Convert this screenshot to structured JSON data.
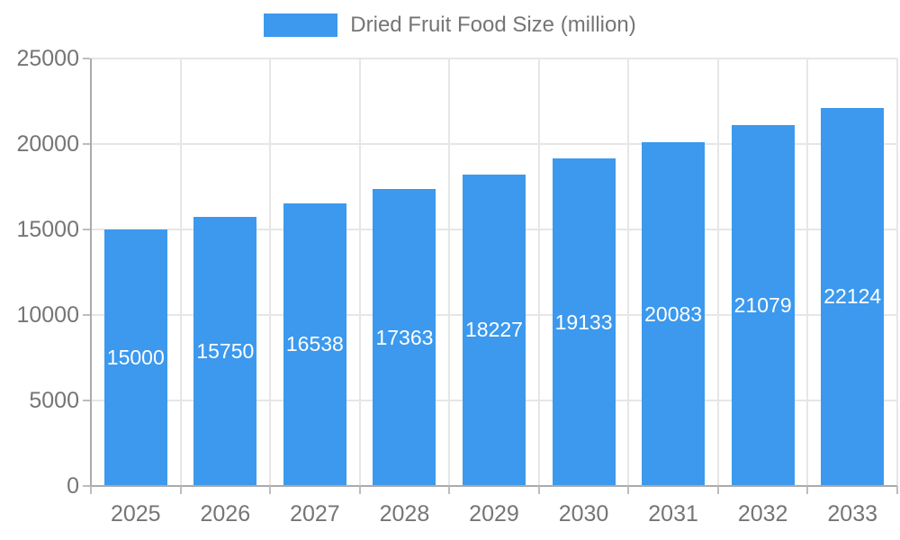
{
  "legend": {
    "label": "Dried Fruit Food Size (million)",
    "swatch_color": "#3C99ED"
  },
  "chart_data": {
    "type": "bar",
    "title": "Dried Fruit Food Size (million)",
    "series_name": "Dried Fruit Food Size (million)",
    "categories": [
      "2025",
      "2026",
      "2027",
      "2028",
      "2029",
      "2030",
      "2031",
      "2032",
      "2033"
    ],
    "values": [
      15000,
      15750,
      16538,
      17363,
      18227,
      19133,
      20083,
      21079,
      22124
    ],
    "bar_labels": [
      "15000",
      "15750",
      "16538",
      "17363",
      "18227",
      "19133",
      "20083",
      "21079",
      "22124"
    ],
    "xlabel": "",
    "ylabel": "",
    "ylim": [
      0,
      25000
    ],
    "yticks": [
      0,
      5000,
      10000,
      15000,
      20000,
      25000
    ],
    "ytick_labels": [
      "0",
      "5000",
      "10000",
      "15000",
      "20000",
      "25000"
    ],
    "grid": true,
    "legend_position": "top",
    "bar_color": "#3C99ED",
    "bar_label_color": "#ffffff",
    "axis_text_color": "#757575",
    "grid_color": "#E6E6E6",
    "axis_line_color": "#ABABAB"
  }
}
